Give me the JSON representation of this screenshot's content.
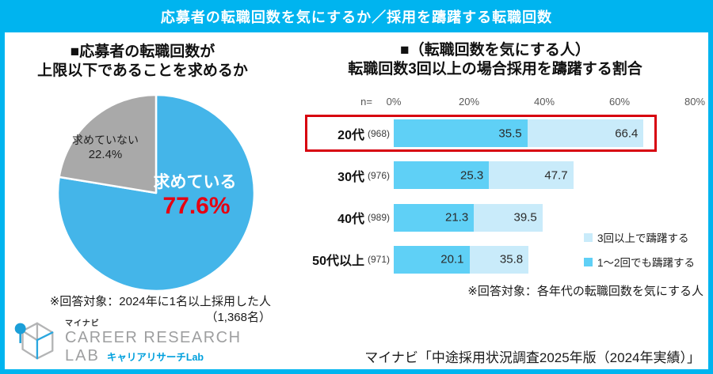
{
  "header": {
    "title": "応募者の転職回数を気にするか／採用を躊躇する転職回数"
  },
  "theme": {
    "frame_cyan": "#00B4EF",
    "pie_blue": "#44B5E9",
    "pie_gray": "#A9A9A9",
    "bar_dark_blue": "#5FD0F6",
    "bar_light_blue": "#C9EBFA",
    "highlight_red": "#D7000F",
    "value_red": "#E60012"
  },
  "chart_data": [
    {
      "type": "pie",
      "title_lines": [
        "■応募者の転職回数が",
        "上限以下であることを求めるか"
      ],
      "start_angle": "12-oclock-clockwise",
      "slices": [
        {
          "label": "求めている",
          "value": 77.6,
          "color": "#44B5E9",
          "label_color": "#ffffff",
          "value_color": "#E60012"
        },
        {
          "label": "求めていない",
          "value": 22.4,
          "color": "#A9A9A9",
          "label_color": "#222222"
        }
      ],
      "note_lines": [
        "※回答対象：2024年に1名以上採用した人",
        "（1,368名）"
      ]
    },
    {
      "type": "bar",
      "orientation": "horizontal",
      "stacked": true,
      "title_lines": [
        "■（転職回数を気にする人）",
        "転職回数3回以上の場合採用を躊躇する割合"
      ],
      "n_label": "n=",
      "x_ticks": [
        "0%",
        "20%",
        "40%",
        "60%",
        "80%"
      ],
      "xlim": [
        0,
        80
      ],
      "grid": false,
      "categories": [
        "20代",
        "30代",
        "40代",
        "50代以上"
      ],
      "n_values": [
        "(968)",
        "(976)",
        "(989)",
        "(971)"
      ],
      "series": [
        {
          "name": "1～2回でも躊躇する",
          "color": "#5FD0F6",
          "values": [
            35.5,
            25.3,
            21.3,
            20.1
          ]
        },
        {
          "name": "3回以上で躊躇する",
          "color": "#C9EBFA",
          "values": [
            66.4,
            47.7,
            39.5,
            35.8
          ],
          "value_role": "cumulative-total-shown-at-bar-end"
        }
      ],
      "legend": [
        {
          "label": "3回以上で躊躇する",
          "color": "#C9EBFA"
        },
        {
          "label": "1～2回でも躊躇する",
          "color": "#5FD0F6"
        }
      ],
      "legend_position": "right",
      "highlight_category": "20代",
      "note": "※回答対象：各年代の転職回数を気にする人"
    }
  ],
  "footer": {
    "logo": {
      "brand_small": "マイナビ",
      "line1": "CAREER RESEARCH",
      "line2": "LAB",
      "line2_jp": "キャリアリサーチLab"
    },
    "source": "マイナビ「中途採用状況調査2025年版（2024年実績）」"
  }
}
